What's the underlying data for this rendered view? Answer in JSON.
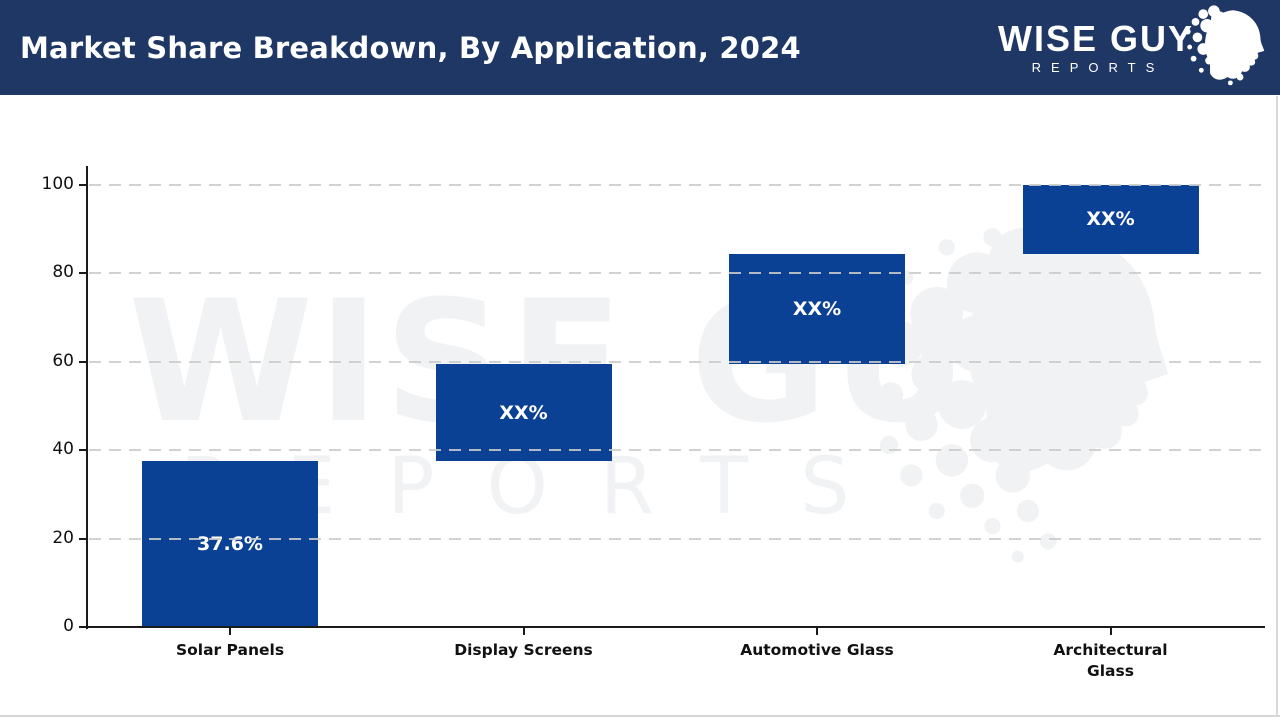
{
  "header": {
    "title": "Market Share Breakdown, By Application, 2024",
    "logo": {
      "line1": "WISE GUY",
      "line2": "REPORTS"
    }
  },
  "watermark": {
    "line1": "WISE GUY",
    "line2": "REPORTS"
  },
  "chart_data": {
    "type": "bar",
    "variant": "waterfall",
    "title": "Market Share Breakdown, By Application, 2024",
    "categories": [
      "Solar Panels",
      "Display Screens",
      "Automotive Glass",
      "Architectural Glass"
    ],
    "x_labels_lines": [
      [
        "Solar Panels"
      ],
      [
        "Display Screens"
      ],
      [
        "Automotive Glass"
      ],
      [
        "Architectural",
        "Glass"
      ]
    ],
    "segments": [
      {
        "category": "Solar Panels",
        "start": 0,
        "end": 37.6,
        "label": "37.6%"
      },
      {
        "category": "Display Screens",
        "start": 37.6,
        "end": 59.4,
        "label": "XX%"
      },
      {
        "category": "Automotive Glass",
        "start": 59.4,
        "end": 84.4,
        "label": "XX%"
      },
      {
        "category": "Architectural Glass",
        "start": 84.4,
        "end": 100,
        "label": "XX%"
      }
    ],
    "y_ticks": [
      0,
      20,
      40,
      60,
      80,
      100
    ],
    "ylim": [
      0,
      100
    ],
    "grid": "dashed-horizontal",
    "legend": false,
    "bar_color": "#0a4195",
    "bar_label_color": "#ffffff"
  },
  "colors": {
    "header_bg": "#1e3765",
    "bar": "#0a4195",
    "axis": "#1a1a1a",
    "grid": "#cbcbcb",
    "watermark": "#f1f2f4",
    "edge": "#d8d8d8",
    "text": "#111111"
  }
}
